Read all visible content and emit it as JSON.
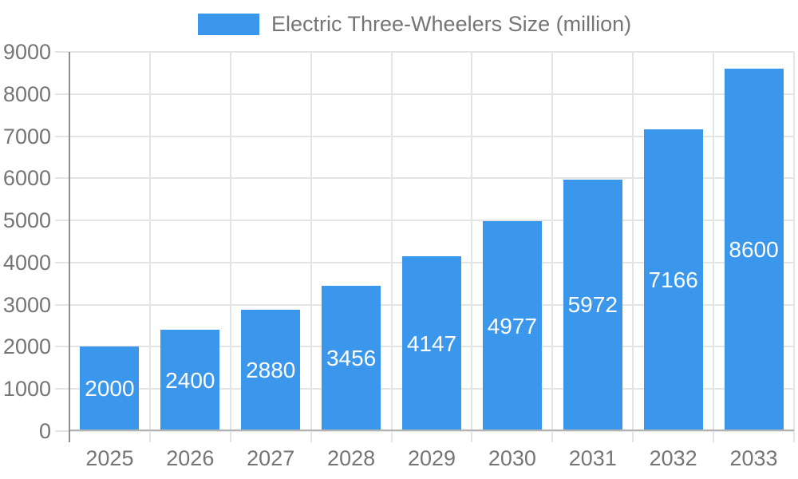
{
  "chart_data": {
    "type": "bar",
    "title": "Electric Three-Wheelers Size (million)",
    "legend": {
      "label": "Electric Three-Wheelers Size (million)",
      "position": "top"
    },
    "categories": [
      "2025",
      "2026",
      "2027",
      "2028",
      "2029",
      "2030",
      "2031",
      "2032",
      "2033"
    ],
    "series": [
      {
        "name": "Electric Three-Wheelers Size (million)",
        "values": [
          2000,
          2400,
          2880,
          3456,
          4147,
          4977,
          5972,
          7166,
          8600
        ]
      }
    ],
    "data_labels_visible": true,
    "xlabel": "",
    "ylabel": "",
    "ylim": [
      0,
      9000
    ],
    "y_ticks": [
      0,
      1000,
      2000,
      3000,
      4000,
      5000,
      6000,
      7000,
      8000,
      9000
    ],
    "grid": true,
    "colors": {
      "bar": "#3B97EC",
      "grid": "#E4E4E4",
      "axis_line": "#8F8F8F",
      "baseline": "#B3B3B3",
      "tick_label": "#757575",
      "data_label": "#FFFFFF",
      "background": "#FFFFFF"
    }
  }
}
